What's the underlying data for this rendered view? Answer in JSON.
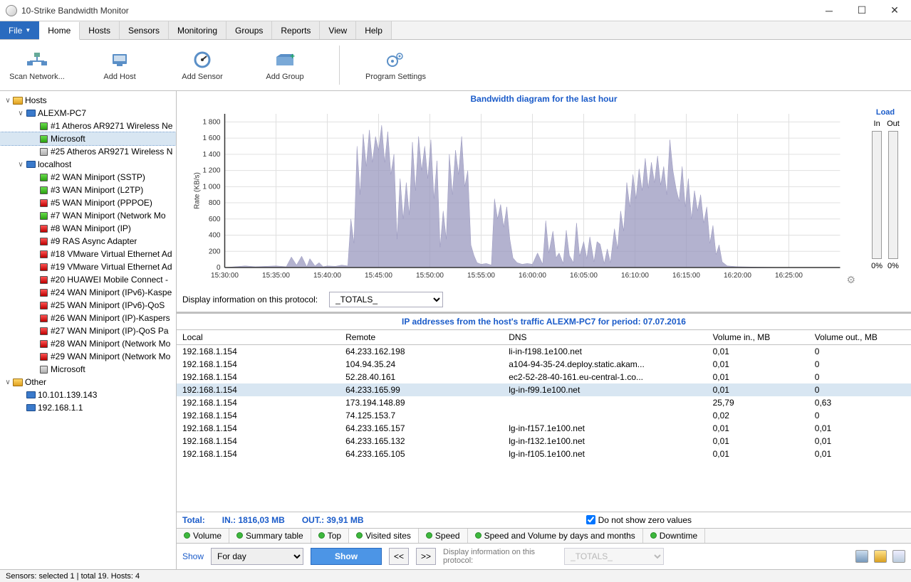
{
  "window": {
    "title": "10-Strike Bandwidth Monitor"
  },
  "menubar": {
    "file": "File",
    "tabs": [
      "Home",
      "Hosts",
      "Sensors",
      "Monitoring",
      "Groups",
      "Reports",
      "View",
      "Help"
    ],
    "active": 0
  },
  "ribbon": [
    {
      "label": "Scan Network...",
      "icon": "scan"
    },
    {
      "label": "Add Host",
      "icon": "host"
    },
    {
      "label": "Add Sensor",
      "icon": "sensor"
    },
    {
      "label": "Add Group",
      "icon": "group"
    },
    {
      "label": "Program Settings",
      "icon": "settings"
    }
  ],
  "tree": [
    {
      "d": 0,
      "tw": "v",
      "i": "folder",
      "t": "Hosts"
    },
    {
      "d": 1,
      "tw": "v",
      "i": "pc",
      "t": "ALEXM-PC7"
    },
    {
      "d": 2,
      "tw": "",
      "i": "green",
      "t": "#1 Atheros AR9271 Wireless Ne"
    },
    {
      "d": 2,
      "tw": "",
      "i": "green",
      "t": "Microsoft",
      "sel": true
    },
    {
      "d": 2,
      "tw": "",
      "i": "gray",
      "t": "#25 Atheros AR9271 Wireless N"
    },
    {
      "d": 1,
      "tw": "v",
      "i": "pc",
      "t": "localhost"
    },
    {
      "d": 2,
      "tw": "",
      "i": "green",
      "t": "#2 WAN Miniport (SSTP)"
    },
    {
      "d": 2,
      "tw": "",
      "i": "green",
      "t": "#3 WAN Miniport (L2TP)"
    },
    {
      "d": 2,
      "tw": "",
      "i": "red",
      "t": "#5 WAN Miniport (PPPOE)"
    },
    {
      "d": 2,
      "tw": "",
      "i": "green",
      "t": "#7 WAN Miniport (Network Mo"
    },
    {
      "d": 2,
      "tw": "",
      "i": "red",
      "t": "#8 WAN Miniport (IP)"
    },
    {
      "d": 2,
      "tw": "",
      "i": "red",
      "t": "#9 RAS Async Adapter"
    },
    {
      "d": 2,
      "tw": "",
      "i": "red",
      "t": "#18 VMware Virtual Ethernet Ad"
    },
    {
      "d": 2,
      "tw": "",
      "i": "red",
      "t": "#19 VMware Virtual Ethernet Ad"
    },
    {
      "d": 2,
      "tw": "",
      "i": "red",
      "t": "#20 HUAWEI Mobile Connect -"
    },
    {
      "d": 2,
      "tw": "",
      "i": "red",
      "t": "#24 WAN Miniport (IPv6)-Kaspe"
    },
    {
      "d": 2,
      "tw": "",
      "i": "red",
      "t": "#25 WAN Miniport (IPv6)-QoS"
    },
    {
      "d": 2,
      "tw": "",
      "i": "red",
      "t": "#26 WAN Miniport (IP)-Kaspers"
    },
    {
      "d": 2,
      "tw": "",
      "i": "red",
      "t": "#27 WAN Miniport (IP)-QoS Pa"
    },
    {
      "d": 2,
      "tw": "",
      "i": "red",
      "t": "#28 WAN Miniport (Network Mo"
    },
    {
      "d": 2,
      "tw": "",
      "i": "red",
      "t": "#29 WAN Miniport (Network Mo"
    },
    {
      "d": 2,
      "tw": "",
      "i": "gray",
      "t": "Microsoft"
    },
    {
      "d": 0,
      "tw": "v",
      "i": "folder",
      "t": "Other"
    },
    {
      "d": 1,
      "tw": "",
      "i": "pc",
      "t": "10.101.139.143"
    },
    {
      "d": 1,
      "tw": "",
      "i": "pc",
      "t": "192.168.1.1"
    }
  ],
  "chart": {
    "title": "Bandwidth diagram for the last hour",
    "ylabel": "Rate (KB/s)",
    "xticks": [
      "15:30:00",
      "15:35:00",
      "15:40:00",
      "15:45:00",
      "15:50:00",
      "15:55:00",
      "16:00:00",
      "16:05:00",
      "16:10:00",
      "16:15:00",
      "16:20:00",
      "16:25:00"
    ],
    "xlim": [
      0,
      60
    ],
    "yticks": [
      0,
      200,
      400,
      600,
      800,
      1000,
      1200,
      1400,
      1600,
      1800
    ],
    "ylim": [
      0,
      1900
    ],
    "grid_color": "#e0e0e0",
    "axis_color": "#333333",
    "fill_color": "#9a98bf",
    "fill_opacity": 0.75,
    "label_fontsize": 10,
    "points": [
      [
        0,
        0
      ],
      [
        2,
        20
      ],
      [
        3,
        10
      ],
      [
        4,
        15
      ],
      [
        5,
        20
      ],
      [
        6,
        10
      ],
      [
        6.5,
        130
      ],
      [
        7,
        30
      ],
      [
        7.5,
        140
      ],
      [
        8,
        10
      ],
      [
        8.3,
        110
      ],
      [
        8.8,
        20
      ],
      [
        9.2,
        60
      ],
      [
        9.6,
        10
      ],
      [
        10,
        20
      ],
      [
        10.8,
        15
      ],
      [
        11.4,
        30
      ],
      [
        12,
        20
      ],
      [
        12.3,
        600
      ],
      [
        12.6,
        300
      ],
      [
        12.9,
        1500
      ],
      [
        13.2,
        900
      ],
      [
        13.5,
        1650
      ],
      [
        13.8,
        1250
      ],
      [
        14.1,
        1700
      ],
      [
        14.4,
        1300
      ],
      [
        14.7,
        1620
      ],
      [
        15,
        1450
      ],
      [
        15.3,
        1760
      ],
      [
        15.6,
        1300
      ],
      [
        15.9,
        1680
      ],
      [
        16.2,
        1150
      ],
      [
        16.5,
        1400
      ],
      [
        16.8,
        350
      ],
      [
        17.1,
        1100
      ],
      [
        17.4,
        600
      ],
      [
        17.7,
        1050
      ],
      [
        18,
        650
      ],
      [
        18.3,
        1550
      ],
      [
        18.6,
        950
      ],
      [
        18.9,
        1620
      ],
      [
        19.2,
        1200
      ],
      [
        19.5,
        1500
      ],
      [
        19.8,
        1100
      ],
      [
        20.1,
        1580
      ],
      [
        20.4,
        850
      ],
      [
        20.7,
        1320
      ],
      [
        21,
        250
      ],
      [
        21.3,
        700
      ],
      [
        21.6,
        350
      ],
      [
        21.9,
        1400
      ],
      [
        22.2,
        900
      ],
      [
        22.5,
        1450
      ],
      [
        22.8,
        1150
      ],
      [
        23.1,
        1620
      ],
      [
        23.4,
        1000
      ],
      [
        23.7,
        1200
      ],
      [
        24,
        280
      ],
      [
        24.3,
        150
      ],
      [
        24.6,
        60
      ],
      [
        25,
        40
      ],
      [
        25.5,
        50
      ],
      [
        26,
        30
      ],
      [
        26.3,
        850
      ],
      [
        26.6,
        600
      ],
      [
        26.9,
        780
      ],
      [
        27.2,
        500
      ],
      [
        27.5,
        750
      ],
      [
        27.8,
        350
      ],
      [
        28.1,
        120
      ],
      [
        28.5,
        60
      ],
      [
        29,
        40
      ],
      [
        29.5,
        50
      ],
      [
        30,
        40
      ],
      [
        30.5,
        180
      ],
      [
        31,
        40
      ],
      [
        31.3,
        580
      ],
      [
        31.6,
        180
      ],
      [
        32,
        450
      ],
      [
        32.3,
        120
      ],
      [
        32.6,
        180
      ],
      [
        33,
        50
      ],
      [
        33.3,
        460
      ],
      [
        33.6,
        150
      ],
      [
        34,
        60
      ],
      [
        34.3,
        550
      ],
      [
        34.6,
        140
      ],
      [
        35,
        320
      ],
      [
        35.3,
        110
      ],
      [
        35.6,
        380
      ],
      [
        36,
        70
      ],
      [
        36.3,
        320
      ],
      [
        36.6,
        290
      ],
      [
        37,
        50
      ],
      [
        37.3,
        230
      ],
      [
        37.6,
        60
      ],
      [
        38,
        480
      ],
      [
        38.3,
        230
      ],
      [
        38.6,
        700
      ],
      [
        38.9,
        450
      ],
      [
        39.2,
        1050
      ],
      [
        39.5,
        750
      ],
      [
        39.8,
        1150
      ],
      [
        40.1,
        850
      ],
      [
        40.4,
        1220
      ],
      [
        40.7,
        950
      ],
      [
        41,
        1350
      ],
      [
        41.3,
        980
      ],
      [
        41.6,
        1300
      ],
      [
        41.9,
        1050
      ],
      [
        42.2,
        1380
      ],
      [
        42.5,
        1020
      ],
      [
        42.8,
        1250
      ],
      [
        43.1,
        900
      ],
      [
        43.4,
        1580
      ],
      [
        43.7,
        1200
      ],
      [
        44,
        980
      ],
      [
        44.3,
        820
      ],
      [
        44.6,
        1250
      ],
      [
        44.9,
        750
      ],
      [
        45.2,
        1100
      ],
      [
        45.5,
        600
      ],
      [
        45.8,
        950
      ],
      [
        46.1,
        700
      ],
      [
        46.4,
        900
      ],
      [
        46.7,
        550
      ],
      [
        47,
        750
      ],
      [
        47.3,
        300
      ],
      [
        47.6,
        520
      ],
      [
        47.9,
        160
      ],
      [
        48.2,
        280
      ],
      [
        48.5,
        70
      ],
      [
        49,
        20
      ],
      [
        50,
        10
      ],
      [
        52,
        5
      ],
      [
        55,
        0
      ],
      [
        60,
        0
      ]
    ]
  },
  "load": {
    "title": "Load",
    "in_label": "In",
    "out_label": "Out",
    "in_pct": "0%",
    "out_pct": "0%"
  },
  "protocol": {
    "label": "Display information on this protocol:",
    "value": "_TOTALS_"
  },
  "table": {
    "title": "IP addresses from the host's traffic ALEXM-PC7 for period: 07.07.2016",
    "columns": [
      "Local",
      "Remote",
      "DNS",
      "Volume in., MB",
      "Volume out., MB"
    ],
    "col_widths": [
      "160px",
      "160px",
      "200px",
      "100px",
      "100px"
    ],
    "rows": [
      [
        "192.168.1.154",
        "64.233.162.198",
        "li-in-f198.1e100.net",
        "0,01",
        "0"
      ],
      [
        "192.168.1.154",
        "104.94.35.24",
        "a104-94-35-24.deploy.static.akam...",
        "0,01",
        "0"
      ],
      [
        "192.168.1.154",
        "52.28.40.161",
        "ec2-52-28-40-161.eu-central-1.co...",
        "0,01",
        "0"
      ],
      [
        "192.168.1.154",
        "64.233.165.99",
        "lg-in-f99.1e100.net",
        "0,01",
        "0"
      ],
      [
        "192.168.1.154",
        "173.194.148.89",
        "",
        "25,79",
        "0,63"
      ],
      [
        "192.168.1.154",
        "74.125.153.7",
        "",
        "0,02",
        "0"
      ],
      [
        "192.168.1.154",
        "64.233.165.157",
        "lg-in-f157.1e100.net",
        "0,01",
        "0,01"
      ],
      [
        "192.168.1.154",
        "64.233.165.132",
        "lg-in-f132.1e100.net",
        "0,01",
        "0,01"
      ],
      [
        "192.168.1.154",
        "64.233.165.105",
        "lg-in-f105.1e100.net",
        "0,01",
        "0,01"
      ]
    ],
    "selected_row": 3
  },
  "totals": {
    "label": "Total:",
    "in": "IN.: 1816,03 MB",
    "out": "OUT.: 39,91 MB",
    "checkbox": "Do not show zero values"
  },
  "bottom_tabs": {
    "items": [
      "Volume",
      "Summary table",
      "Top",
      "Visited sites",
      "Speed",
      "Speed and Volume by days and months",
      "Downtime"
    ],
    "active": 3
  },
  "bottom_bar": {
    "show_label": "Show",
    "period": "For day",
    "show_btn": "Show",
    "prev": "<<",
    "next": ">>",
    "info_label": "Display information on this protocol:",
    "proto2": "_TOTALS_"
  },
  "status": "Sensors: selected 1 | total 19. Hosts: 4"
}
